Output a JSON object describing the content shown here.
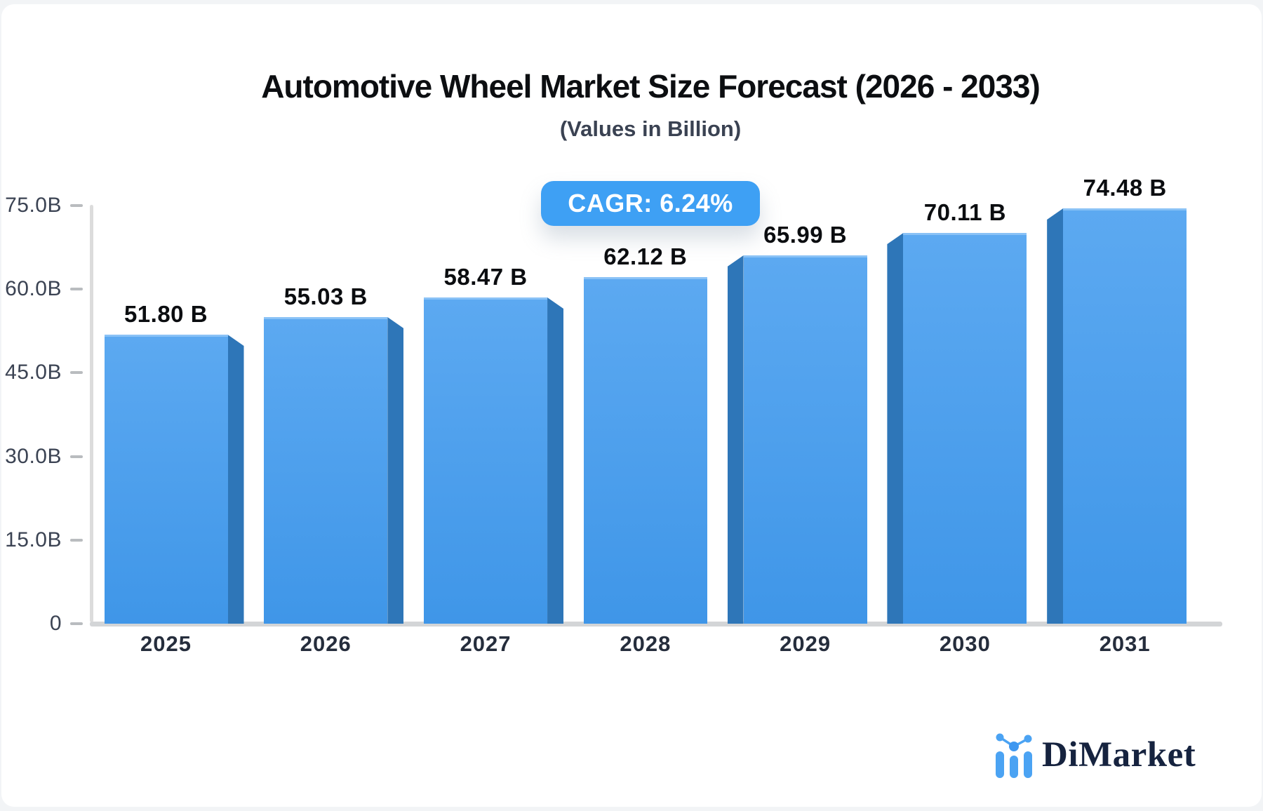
{
  "page": {
    "title": "Automotive Wheel Market Size Forecast (2026 - 2033)",
    "subtitle": "(Values in Billion)",
    "cagr_badge": "CAGR: 6.24%"
  },
  "chart_data": {
    "type": "bar",
    "title": "Automotive Wheel Market Size Forecast (2026 - 2033)",
    "subtitle": "(Values in Billion)",
    "annotation": "CAGR: 6.24%",
    "categories": [
      "2025",
      "2026",
      "2027",
      "2028",
      "2029",
      "2030",
      "2031"
    ],
    "values": [
      51.8,
      55.03,
      58.47,
      62.12,
      65.99,
      70.11,
      74.48
    ],
    "value_labels": [
      "51.80 B",
      "55.03 B",
      "58.47 B",
      "62.12 B",
      "65.99 B",
      "70.11 B",
      "74.48 B"
    ],
    "ylim": [
      0,
      75
    ],
    "yticks": [
      {
        "label": "75.0B",
        "value": 75
      },
      {
        "label": "60.0B",
        "value": 60
      },
      {
        "label": "45.0B",
        "value": 45
      },
      {
        "label": "30.0B",
        "value": 30
      },
      {
        "label": "15.0B",
        "value": 15
      },
      {
        "label": "0",
        "value": 0
      }
    ],
    "grid": false,
    "legend": "none",
    "bar_style_3d": true,
    "bar_colors": {
      "face_top": "#5CA9F1",
      "face_bottom": "#3F96E8",
      "side": "#2E76B8",
      "top_highlight": "#8AC2F6"
    }
  },
  "footer": {
    "brand": "DiMarket",
    "logo_icon": "bar-line-chart-icon"
  },
  "colors": {
    "badge_bg": "#3EA0F4",
    "badge_text": "#FFFFFF",
    "title": "#0C0E11",
    "subtitle": "#3A4252",
    "axis_text": "#3B4353",
    "tick_dash": "#B9BCBF",
    "year_text": "#252D3C",
    "value_text": "#0B0D10",
    "axis_line": "#DCDCDC",
    "baseline": "#D3D5D7",
    "logo_text": "#16233F",
    "logo_blue": "#4BA3F3",
    "logo_dot_mid": "#3E97F0"
  }
}
